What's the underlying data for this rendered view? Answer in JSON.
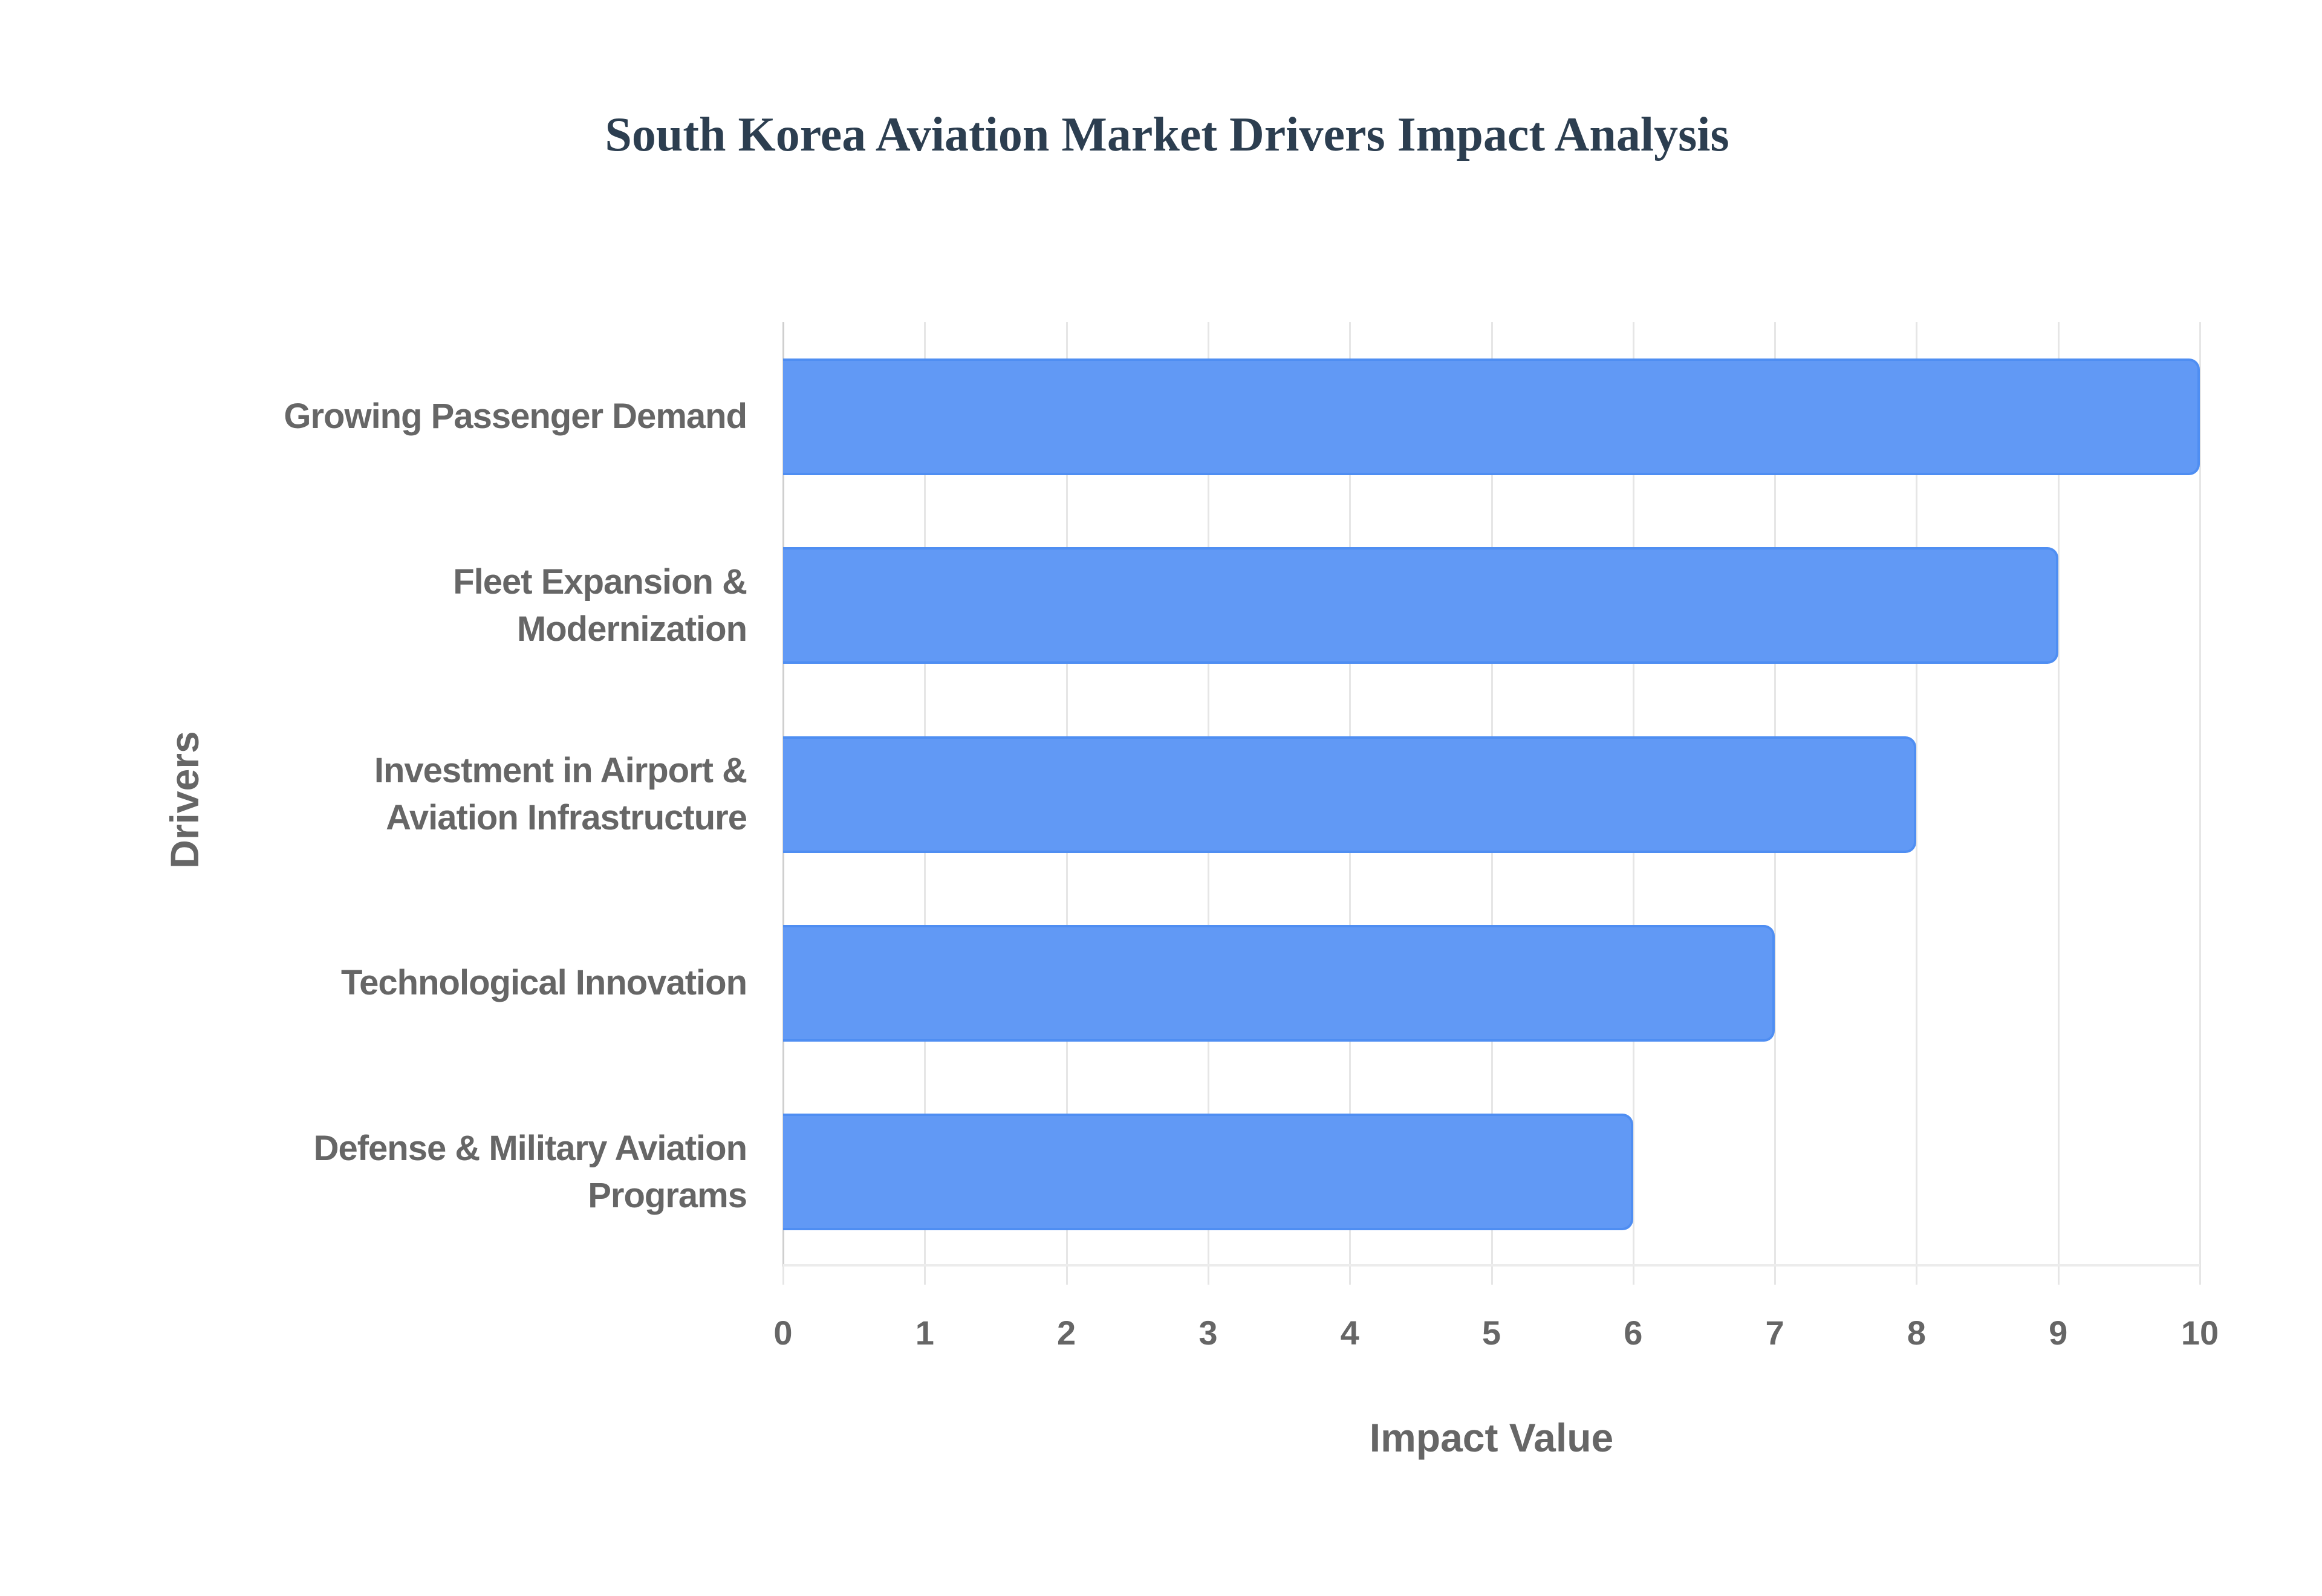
{
  "chart_data": {
    "type": "bar",
    "orientation": "horizontal",
    "title": "South Korea Aviation Market Drivers Impact Analysis",
    "xlabel": "Impact Value",
    "ylabel": "Drivers",
    "categories": [
      "Growing Passenger Demand",
      "Fleet Expansion & Modernization",
      "Investment in Airport & Aviation Infrastructure",
      "Technological Innovation",
      "Defense & Military Aviation Programs"
    ],
    "category_lines": [
      [
        "Growing Passenger Demand"
      ],
      [
        "Fleet Expansion &",
        "Modernization"
      ],
      [
        "Investment in Airport &",
        "Aviation Infrastructure"
      ],
      [
        "Technological Innovation"
      ],
      [
        "Defense & Military Aviation",
        "Programs"
      ]
    ],
    "values": [
      10,
      9,
      8,
      7,
      6
    ],
    "xlim": [
      0,
      10
    ],
    "xticks": [
      "0",
      "1",
      "2",
      "3",
      "4",
      "5",
      "6",
      "7",
      "8",
      "9",
      "10"
    ],
    "grid": true,
    "legend": null,
    "colors": {
      "bar_fill": "#6199f5",
      "bar_border": "#4f8ef2",
      "title": "#2c3e50",
      "axis_text": "#666666",
      "grid": "#e6e6e6"
    }
  }
}
